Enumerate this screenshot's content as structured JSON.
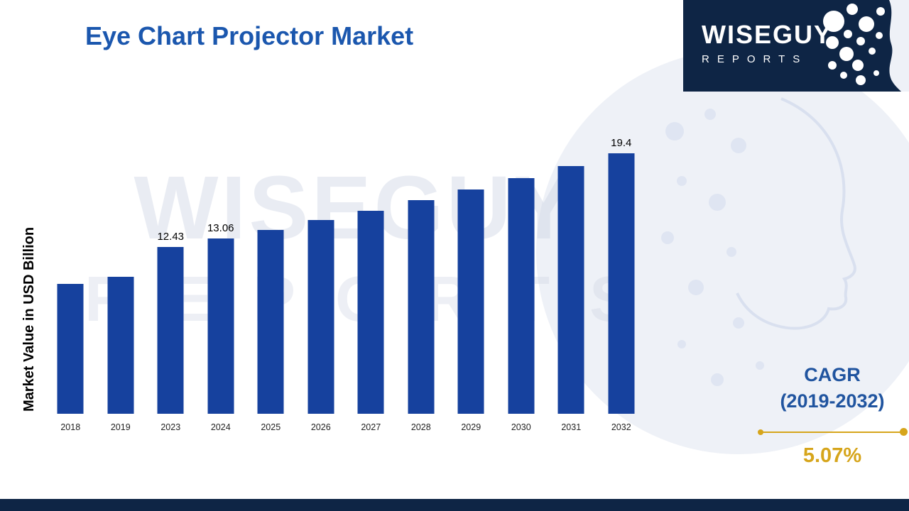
{
  "title": "Eye Chart Projector Market",
  "logo": {
    "name": "WISEGUY",
    "sub": "REPORTS"
  },
  "watermark": {
    "name": "WISEGUY",
    "sub": "REPORTS"
  },
  "chart_data": {
    "type": "bar",
    "title": "Eye Chart Projector Market",
    "xlabel": "",
    "ylabel": "Market Value in USD Billion",
    "categories": [
      "2018",
      "2019",
      "2023",
      "2024",
      "2025",
      "2026",
      "2027",
      "2028",
      "2029",
      "2030",
      "2031",
      "2032"
    ],
    "values": [
      9.7,
      10.2,
      12.43,
      13.06,
      13.72,
      14.42,
      15.15,
      15.92,
      16.73,
      17.58,
      18.47,
      19.4
    ],
    "data_labels": {
      "2023": "12.43",
      "2024": "13.06",
      "2032": "19.4"
    },
    "ylim": [
      0,
      20
    ],
    "grid": false,
    "legend": false,
    "bar_color": "#16419e"
  },
  "cagr": {
    "label": "CAGR",
    "range": "(2019-2032)",
    "value": "5.07%"
  },
  "colors": {
    "title_blue": "#1b57ae",
    "bar_blue": "#16419e",
    "navy": "#0e2545",
    "gold": "#d6a51b",
    "watermark_gray": "#ccd3e3"
  }
}
